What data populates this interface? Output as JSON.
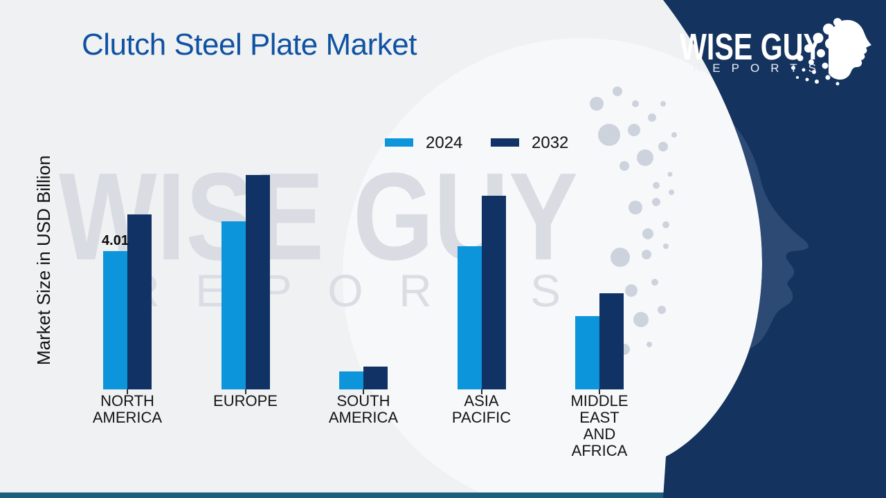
{
  "title": "Clutch Steel Plate Market",
  "logo": {
    "line1": "WISE GUY",
    "line2": "REPORTS"
  },
  "watermark": {
    "line1": "WISE GUY",
    "line2": "REPORTS"
  },
  "colors": {
    "background": "#f0f1f3",
    "title_blue": "#0f52a2",
    "bar_2024": "#0d95dc",
    "bar_2032": "#103264",
    "corner_navy": "#14335f",
    "face_navy": "#2c4a74",
    "teal_strip": "#1b5f7c",
    "watermark_gray": "#d9dce2",
    "label_black": "#141414"
  },
  "chart_data": {
    "type": "bar",
    "title": "Clutch Steel Plate Market",
    "xlabel": "",
    "ylabel": "Market Size in USD Billion",
    "categories": [
      "NORTH AMERICA",
      "EUROPE",
      "SOUTH AMERICA",
      "ASIA PACIFIC",
      "MIDDLE EAST AND AFRICA"
    ],
    "category_label_lines": [
      [
        "NORTH",
        "AMERICA"
      ],
      [
        "EUROPE"
      ],
      [
        "SOUTH",
        "AMERICA"
      ],
      [
        "ASIA",
        "PACIFIC"
      ],
      [
        "MIDDLE",
        "EAST",
        "AND",
        "AFRICA"
      ]
    ],
    "series": [
      {
        "name": "2024",
        "color": "#0d95dc",
        "values": [
          4.01,
          4.87,
          0.52,
          4.15,
          2.13
        ]
      },
      {
        "name": "2032",
        "color": "#103264",
        "values": [
          5.07,
          6.21,
          0.66,
          5.61,
          2.79
        ]
      }
    ],
    "bar_labels": [
      {
        "series": 0,
        "category": 0,
        "text": "4.01"
      }
    ],
    "ylim": [
      0,
      6.6
    ],
    "grid": false,
    "axis_line": false,
    "legend_position": "top-center",
    "units": "USD Billion"
  }
}
